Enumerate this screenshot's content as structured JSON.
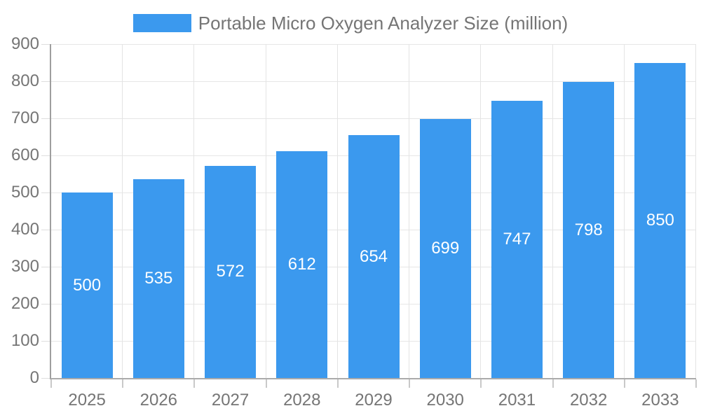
{
  "legend": {
    "label": "Portable Micro Oxygen Analyzer Size (million)"
  },
  "chart_data": {
    "type": "bar",
    "title": "Portable Micro Oxygen Analyzer Size (million)",
    "categories": [
      "2025",
      "2026",
      "2027",
      "2028",
      "2029",
      "2030",
      "2031",
      "2032",
      "2033"
    ],
    "values": [
      500,
      535,
      572,
      612,
      654,
      699,
      747,
      798,
      850
    ],
    "xlabel": "",
    "ylabel": "",
    "ylim": [
      0,
      900
    ],
    "yticks": [
      0,
      100,
      200,
      300,
      400,
      500,
      600,
      700,
      800,
      900
    ],
    "grid": true,
    "legend_position": "top-center",
    "value_label_position": "inside-center",
    "colors": {
      "bar": "#3b99ee",
      "value_label": "#ffffff",
      "axis_text": "#757575",
      "grid_line": "#e6e6e6",
      "axis_line": "#9e9e9e",
      "tick": "#c9c9c9",
      "background": "#ffffff"
    }
  }
}
